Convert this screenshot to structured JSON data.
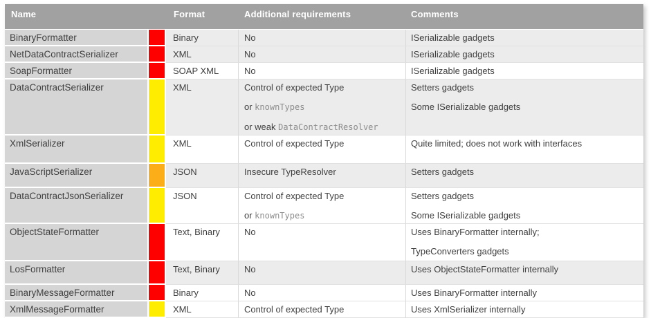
{
  "palette": {
    "red": "#FF0000",
    "yellow": "#FFED00",
    "orange": "#FBAE17",
    "header_bg": "#A1A1A1",
    "name_col_bg": "#D5D5D5",
    "band_gray": "#ECECEC",
    "band_white": "#FFFFFF",
    "text": "#3F3F3F",
    "mono_text": "#8C8C8C"
  },
  "header": {
    "name": "Name",
    "format": "Format",
    "requirements": "Additional requirements",
    "comments": "Comments"
  },
  "rows": [
    {
      "name": "BinaryFormatter",
      "risk": "red",
      "format": "Binary",
      "requirements": [
        [
          {
            "text": "No"
          }
        ]
      ],
      "comments": [
        [
          {
            "text": "ISerializable gadgets"
          }
        ]
      ],
      "band": "gray"
    },
    {
      "name": "NetDataContractSerializer",
      "risk": "red",
      "format": "XML",
      "requirements": [
        [
          {
            "text": "No"
          }
        ]
      ],
      "comments": [
        [
          {
            "text": "ISerializable gadgets"
          }
        ]
      ],
      "band": "gray"
    },
    {
      "name": "SoapFormatter",
      "risk": "red",
      "format": "SOAP XML",
      "requirements": [
        [
          {
            "text": "No"
          }
        ]
      ],
      "comments": [
        [
          {
            "text": "ISerializable gadgets"
          }
        ]
      ],
      "band": "white"
    },
    {
      "name": "DataContractSerializer",
      "risk": "yellow",
      "format": "XML",
      "requirements": [
        [
          {
            "text": "Control of expected Type"
          }
        ],
        [
          {
            "text": "or "
          },
          {
            "text": "knownTypes",
            "mono": true
          }
        ],
        [
          {
            "text": "or weak "
          },
          {
            "text": "DataContractResolver",
            "mono": true
          }
        ]
      ],
      "comments": [
        [
          {
            "text": "Setters gadgets"
          }
        ],
        [
          {
            "text": "Some ISerializable gadgets"
          }
        ]
      ],
      "band": "gray"
    },
    {
      "name": "XmlSerializer",
      "risk": "yellow",
      "format": "XML",
      "requirements": [
        [
          {
            "text": "Control of expected Type"
          }
        ]
      ],
      "comments": [
        [
          {
            "text": "Quite limited; does not work with interfaces"
          }
        ]
      ],
      "band": "white"
    },
    {
      "name": "JavaScriptSerializer",
      "risk": "orange",
      "format": "JSON",
      "requirements": [
        [
          {
            "text": "Insecure TypeResolver"
          }
        ]
      ],
      "comments": [
        [
          {
            "text": "Setters gadgets"
          }
        ]
      ],
      "band": "gray"
    },
    {
      "name": "DataContractJsonSerializer",
      "risk": "yellow",
      "format": "JSON",
      "requirements": [
        [
          {
            "text": "Control of expected Type"
          }
        ],
        [
          {
            "text": "or "
          },
          {
            "text": "knownTypes",
            "mono": true
          }
        ]
      ],
      "comments": [
        [
          {
            "text": "Setters gadgets"
          }
        ],
        [
          {
            "text": "Some ISerializable gadgets"
          }
        ]
      ],
      "band": "white"
    },
    {
      "name": "ObjectStateFormatter",
      "risk": "red",
      "format": "Text, Binary",
      "requirements": [
        [
          {
            "text": "No"
          }
        ]
      ],
      "comments": [
        [
          {
            "text": "Uses BinaryFormatter internally;"
          }
        ],
        [
          {
            "text": "TypeConverters gadgets"
          }
        ]
      ],
      "band": "white"
    },
    {
      "name": "LosFormatter",
      "risk": "red",
      "format": "Text, Binary",
      "requirements": [
        [
          {
            "text": "No"
          }
        ]
      ],
      "comments": [
        [
          {
            "text": "Uses ObjectStateFormatter internally"
          }
        ]
      ],
      "band": "gray"
    },
    {
      "name": "BinaryMessageFormatter",
      "risk": "red",
      "format": "Binary",
      "requirements": [
        [
          {
            "text": "No"
          }
        ]
      ],
      "comments": [
        [
          {
            "text": "Uses BinaryFormatter internally"
          }
        ]
      ],
      "band": "white"
    },
    {
      "name": "XmlMessageFormatter",
      "risk": "yellow",
      "format": "XML",
      "requirements": [
        [
          {
            "text": "Control of expected Type"
          }
        ]
      ],
      "comments": [
        [
          {
            "text": "Uses XmlSerializer internally"
          }
        ]
      ],
      "band": "white"
    }
  ]
}
